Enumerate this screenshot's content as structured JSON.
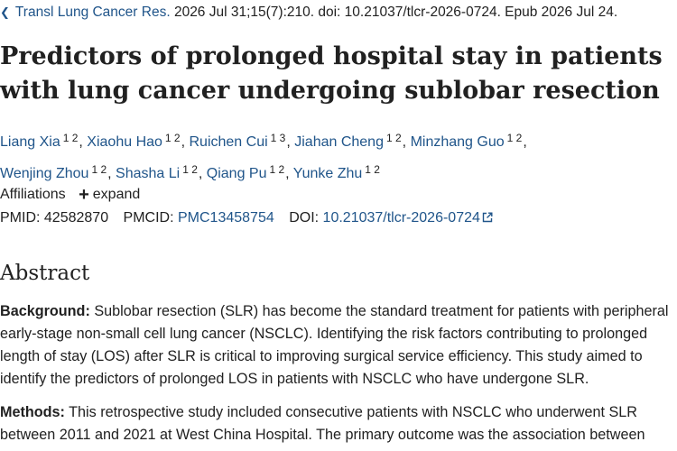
{
  "citation": {
    "journal": "Transl Lung Cancer Res.",
    "details": " 2026 Jul 31;15(7):210. doi: 10.21037/tlcr-2026-0724. Epub 2026 Jul 24."
  },
  "title": "Predictors of prolonged hospital stay in patients with lung cancer undergoing sublobar resection",
  "authors": [
    {
      "name": "Liang Xia",
      "aff": "1 2"
    },
    {
      "name": "Xiaohu Hao",
      "aff": "1 2"
    },
    {
      "name": "Ruichen Cui",
      "aff": "1 3"
    },
    {
      "name": "Jiahan Cheng",
      "aff": "1 2"
    },
    {
      "name": "Minzhang Guo",
      "aff": "1 2"
    },
    {
      "name": "Wenjing Zhou",
      "aff": "1 2"
    },
    {
      "name": "Shasha Li",
      "aff": "1 2"
    },
    {
      "name": "Qiang Pu",
      "aff": "1 2"
    },
    {
      "name": "Yunke Zhu",
      "aff": "1 2"
    }
  ],
  "affiliations": {
    "label": "Affiliations",
    "expand_label": "expand"
  },
  "ids": {
    "pmid_label": "PMID:",
    "pmid": "42582870",
    "pmcid_label": "PMCID:",
    "pmcid": "PMC13458754",
    "doi_label": "DOI:",
    "doi": "10.21037/tlcr-2026-0724"
  },
  "abstract": {
    "heading": "Abstract",
    "background_label": "Background:",
    "background_text": " Sublobar resection (SLR) has become the standard treatment for patients with peripheral early-stage non-small cell lung cancer (NSCLC). Identifying the risk factors contributing to prolonged length of stay (LOS) after SLR is critical to improving surgical service efficiency. This study aimed to identify the predictors of prolonged LOS in patients with NSCLC who have undergone SLR.",
    "methods_label": "Methods:",
    "methods_text": " This retrospective study included consecutive patients with NSCLC who underwent SLR between 2011 and 2021 at West China Hospital. The primary outcome was the association between"
  },
  "colors": {
    "link": "#20558a",
    "text": "#212121"
  },
  "icons": {
    "citation_arrow": "chevron-left-icon",
    "external_link": "external-link-icon",
    "expand": "plus-icon"
  }
}
